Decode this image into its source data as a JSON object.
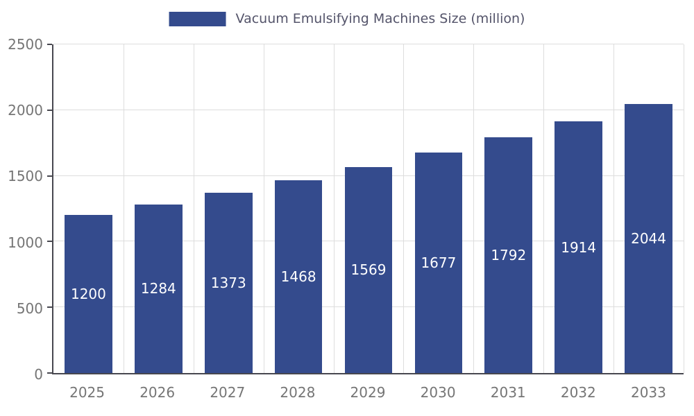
{
  "legend": {
    "label": "Vacuum Emulsifying Machines Size (million)"
  },
  "chart_data": {
    "type": "bar",
    "title": "Vacuum Emulsifying Machines Size (million)",
    "categories": [
      "2025",
      "2026",
      "2027",
      "2028",
      "2029",
      "2030",
      "2031",
      "2032",
      "2033"
    ],
    "values": [
      1200,
      1284,
      1373,
      1468,
      1569,
      1677,
      1792,
      1914,
      2044
    ],
    "xlabel": "",
    "ylabel": "",
    "ylim": [
      0,
      2500
    ],
    "yticks": [
      0,
      500,
      1000,
      1500,
      2000,
      2500
    ],
    "grid": true,
    "legend_position": "top",
    "bar_color": "#344b8d",
    "bar_label_color": "#ffffff",
    "axis_line_color": "#47474f",
    "gridline_color": "#dddddd",
    "tick_label_color": "#757575",
    "legend_text_color": "#54546a"
  }
}
